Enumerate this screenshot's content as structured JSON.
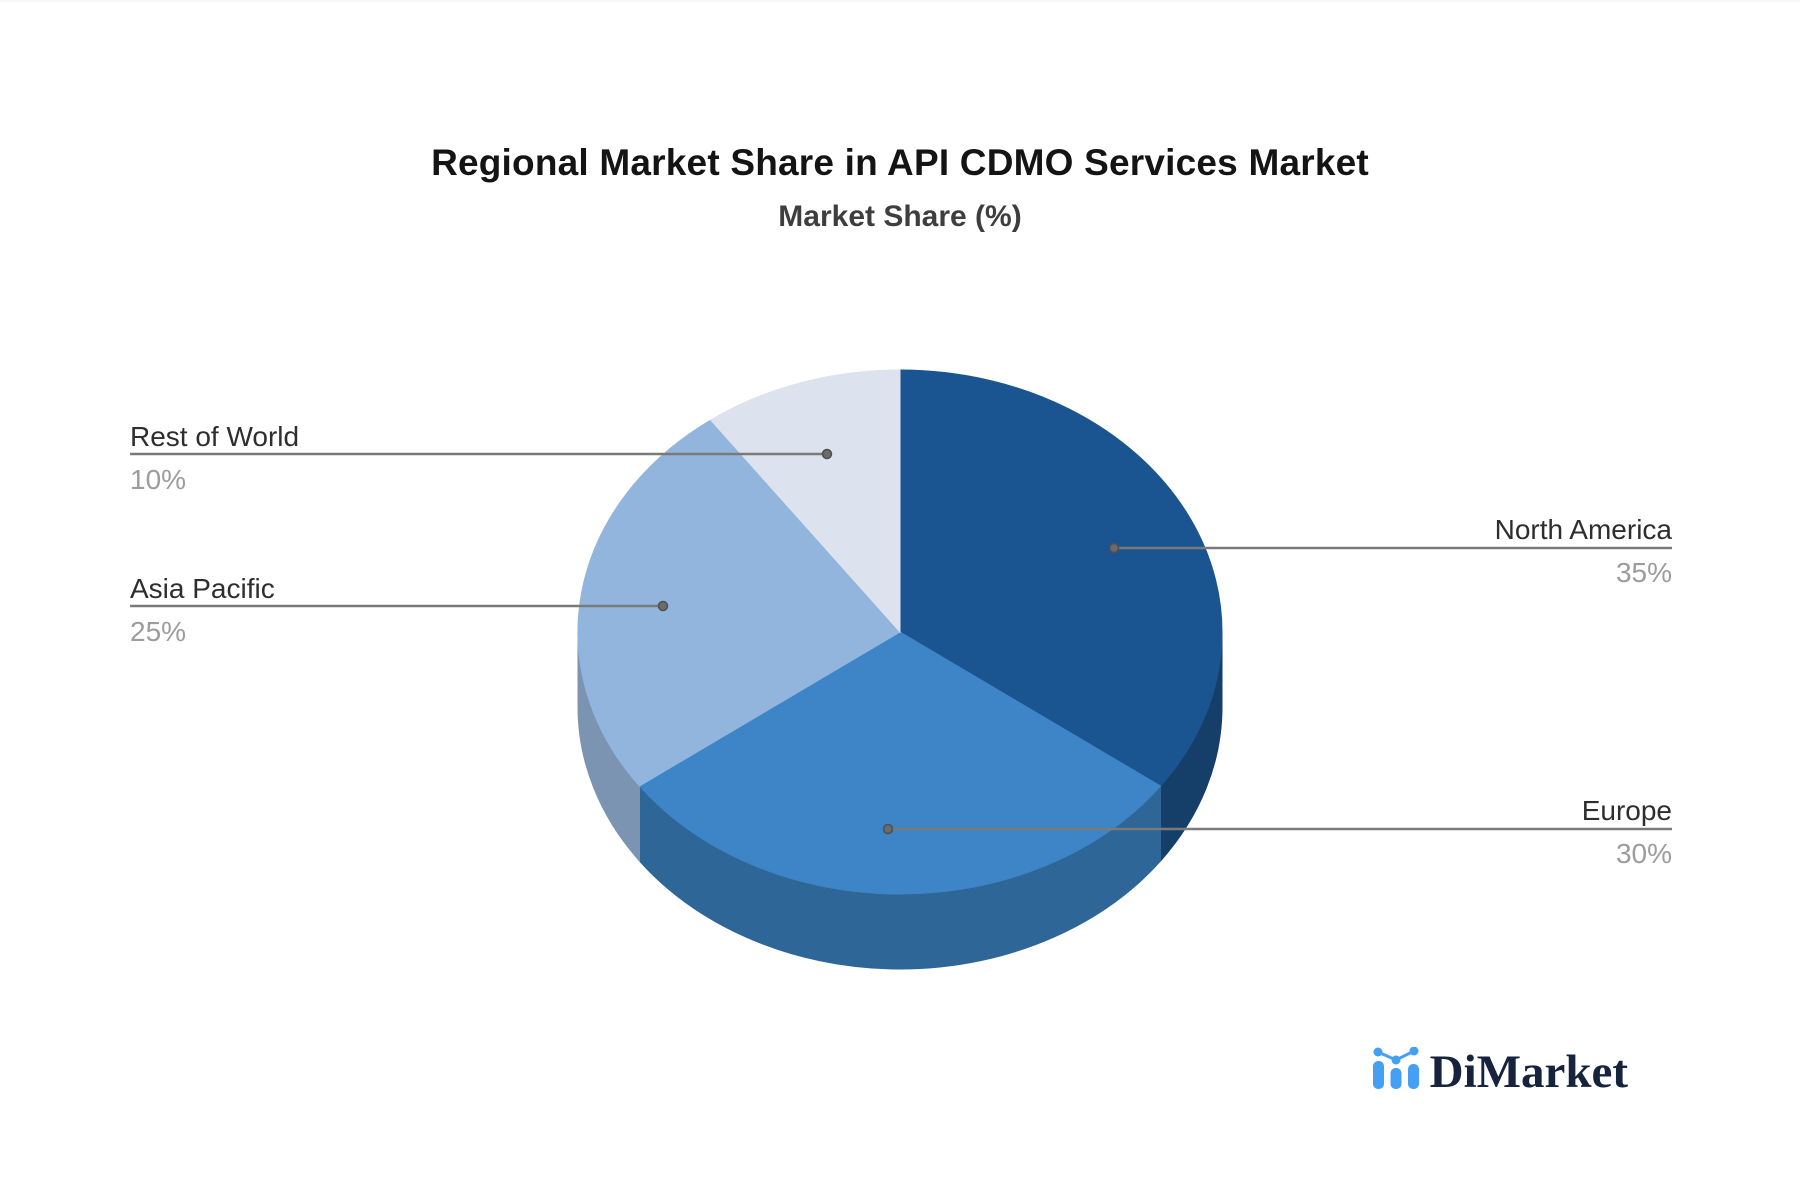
{
  "chart_data": {
    "type": "pie",
    "style": "3d",
    "title": "Regional Market Share in API CDMO Services Market",
    "subtitle": "Market Share (%)",
    "start_angle_deg": 90,
    "direction": "clockwise",
    "legend": "none",
    "slices": [
      {
        "label": "North America",
        "value": 35,
        "display": "35%",
        "color": "#1b5591",
        "side_color": "#153f68",
        "callout_side": "right"
      },
      {
        "label": "Europe",
        "value": 30,
        "display": "30%",
        "color": "#3d85c6",
        "side_color": "#2d6697",
        "callout_side": "right"
      },
      {
        "label": "Asia Pacific",
        "value": 25,
        "display": "25%",
        "color": "#92b5dd",
        "side_color": "#7b94b1",
        "callout_side": "left"
      },
      {
        "label": "Rest of World",
        "value": 10,
        "display": "10%",
        "color": "#dce3ee",
        "side_color": "#c2cbd9",
        "callout_side": "left"
      }
    ],
    "callout_line_color": "#7a7a7a",
    "callout_dot_color": "#6b6b6b",
    "label_color": "#2e2e2e",
    "value_color": "#9c9c9c"
  },
  "branding": {
    "logo_text": "DiMarket",
    "logo_color": "#16233d",
    "logo_icon": "bar-line-chart-icon",
    "logo_icon_color": "#45a0f5"
  }
}
